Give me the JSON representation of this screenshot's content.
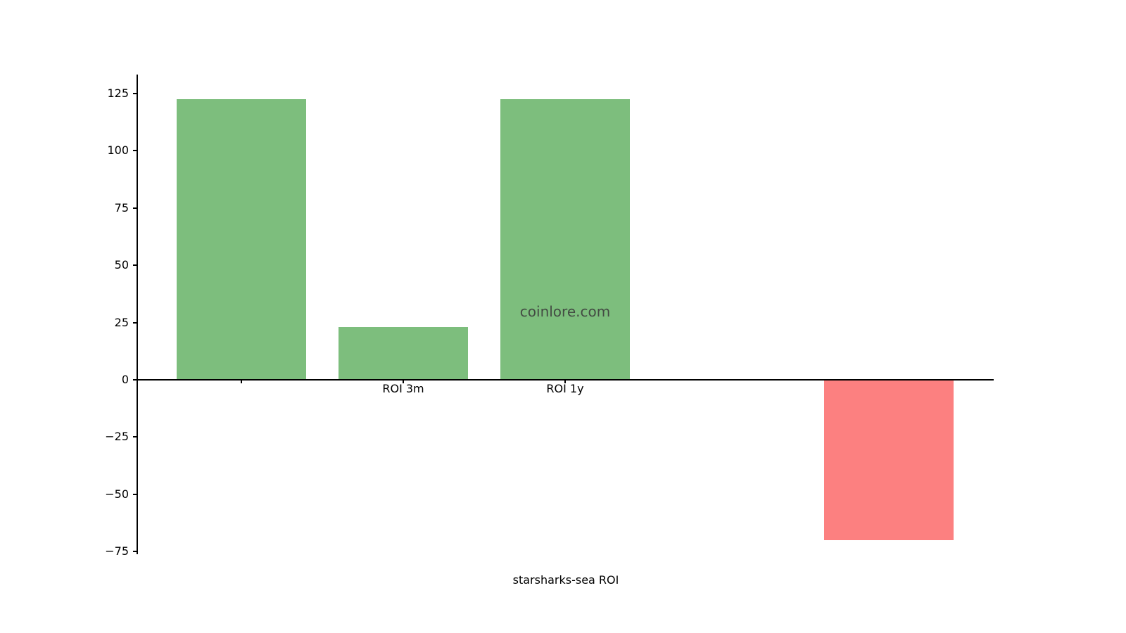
{
  "chart_data": {
    "type": "bar",
    "title": "",
    "xlabel": "starsharks-sea ROI",
    "ylabel": "",
    "watermark": "coinlore.com",
    "categories": [
      "",
      "ROI 3m",
      "ROI 1y",
      "",
      ""
    ],
    "values": [
      122.5,
      23,
      122.5,
      0,
      -70
    ],
    "bar_colors": [
      "#7dbe7d",
      "#7dbe7d",
      "#7dbe7d",
      "#7dbe7d",
      "#fc8080"
    ],
    "yticks": [
      125,
      100,
      75,
      50,
      25,
      0,
      -25,
      -50,
      -75
    ],
    "ylim": [
      -77,
      133
    ],
    "grid": false,
    "legend_position": "none",
    "tick_slots_with_marks": [
      0,
      1,
      2
    ],
    "colors": {
      "positive": "#7dbe7d",
      "negative": "#fc8080",
      "axis": "#000000",
      "text": "#000000",
      "watermark": "#3c3c3c"
    }
  }
}
